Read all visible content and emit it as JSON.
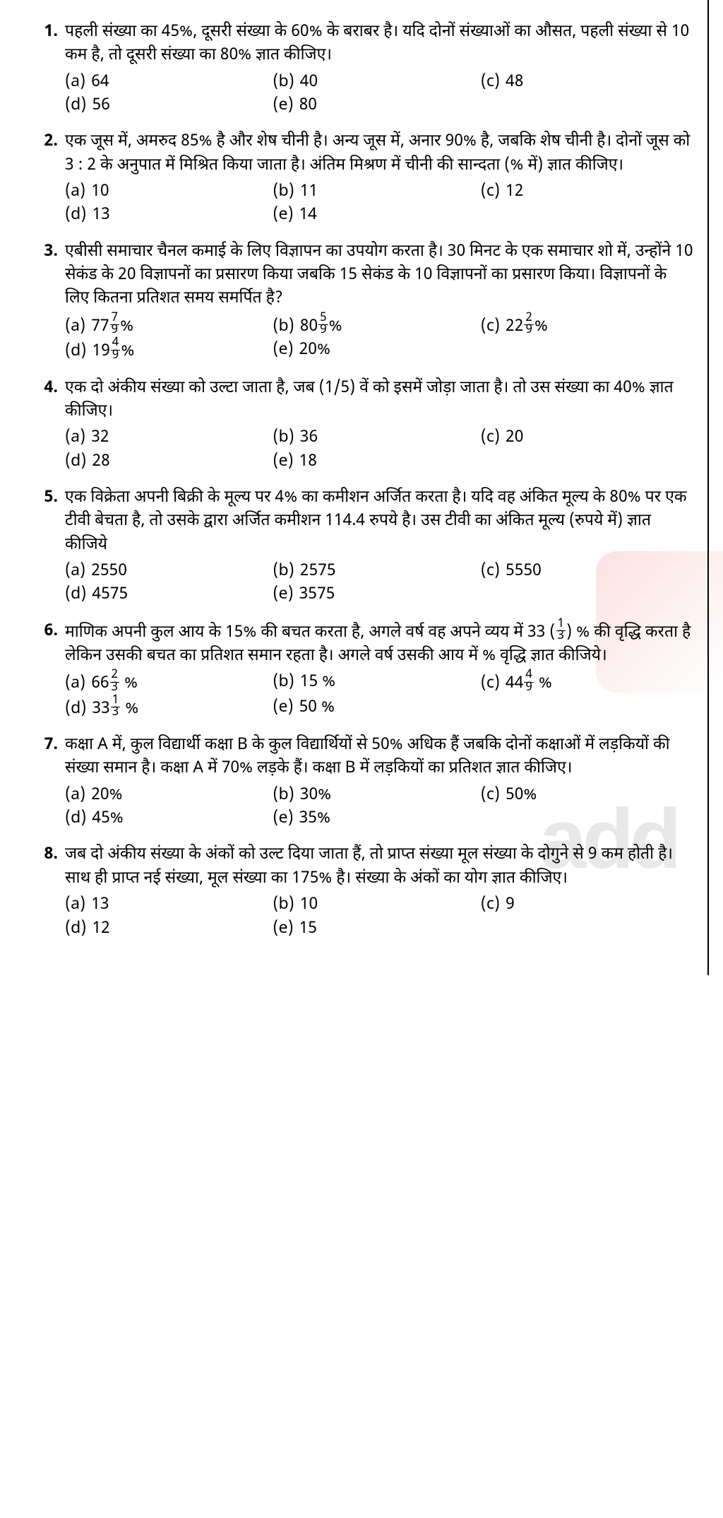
{
  "watermark_text": "add",
  "questions": [
    {
      "num": "1.",
      "text": "पहली संख्या का 45%, दूसरी संख्या के 60% के बराबर है। यदि दोनों संख्याओं का औसत, पहली संख्या से 10 कम है, तो दूसरी संख्या का 80% ज्ञात कीजिए।",
      "options": [
        {
          "l": "(a)",
          "v": "64"
        },
        {
          "l": "(b)",
          "v": "40"
        },
        {
          "l": "(c)",
          "v": "48"
        },
        {
          "l": "(d)",
          "v": "56"
        },
        {
          "l": "(e)",
          "v": "80"
        }
      ]
    },
    {
      "num": "2.",
      "text": "एक जूस में, अमरुद 85% है और शेष चीनी है। अन्य जूस में, अनार 90% है, जबकि शेष चीनी है। दोनों जूस को 3 : 2 के अनुपात में मिश्रित किया जाता है। अंतिम मिश्रण में चीनी की सान्दता (% में) ज्ञात कीजिए।",
      "options": [
        {
          "l": "(a)",
          "v": "10"
        },
        {
          "l": "(b)",
          "v": "11"
        },
        {
          "l": "(c)",
          "v": "12"
        },
        {
          "l": "(d)",
          "v": "13"
        },
        {
          "l": "(e)",
          "v": "14"
        }
      ]
    },
    {
      "num": "3.",
      "text": "एबीसी समाचार चैनल कमाई के लिए विज्ञापन का उपयोग करता है। 30 मिनट के एक समाचार शो में, उन्होंने 10 सेकंड के 20 विज्ञापनों का प्रसारण किया जबकि 15 सेकंड के 10 विज्ञापनों का प्रसारण किया। विज्ञापनों के लिए कितना प्रतिशत समय समर्पित है?",
      "options": [
        {
          "l": "(a)",
          "v": "77",
          "frac": {
            "n": "7",
            "d": "9"
          },
          "suffix": "%"
        },
        {
          "l": "(b)",
          "v": "80",
          "frac": {
            "n": "5",
            "d": "9"
          },
          "suffix": "%"
        },
        {
          "l": "(c)",
          "v": "22",
          "frac": {
            "n": "2",
            "d": "9"
          },
          "suffix": "%"
        },
        {
          "l": "(d)",
          "v": "19",
          "frac": {
            "n": "4",
            "d": "9"
          },
          "suffix": "%"
        },
        {
          "l": "(e)",
          "v": "20%"
        }
      ]
    },
    {
      "num": "4.",
      "text": "एक दो अंकीय संख्या को उल्टा जाता है, जब (1/5) वें को इसमें जोड़ा जाता है। तो उस संख्या का 40% ज्ञात कीजिए।",
      "options": [
        {
          "l": "(a)",
          "v": "32"
        },
        {
          "l": "(b)",
          "v": "36"
        },
        {
          "l": "(c)",
          "v": "20"
        },
        {
          "l": "(d)",
          "v": "28"
        },
        {
          "l": "(e)",
          "v": "18"
        }
      ]
    },
    {
      "num": "5.",
      "text": "एक विक्रेता अपनी बिक्री के मूल्य पर 4% का कमीशन अर्जित करता है। यदि वह अंकित मूल्य के 80% पर एक टीवी बेचता है, तो उसके द्वारा अर्जित कमीशन 114.4 रुपये है। उस टीवी का अंकित मूल्य (रुपये में) ज्ञात कीजिये",
      "options": [
        {
          "l": "(a)",
          "v": "2550"
        },
        {
          "l": "(b)",
          "v": "2575"
        },
        {
          "l": "(c)",
          "v": "5550"
        },
        {
          "l": "(d)",
          "v": "4575"
        },
        {
          "l": "(e)",
          "v": "3575"
        }
      ]
    },
    {
      "num": "6.",
      "text_parts": [
        "माणिक अपनी कुल आय के 15% की बचत करता है, अगले वर्ष वह अपने व्यय में 33 ",
        " % की वृद्धि करता है लेकिन उसकी बचत का प्रतिशत समान रहता है। अगले वर्ष उसकी आय में % वृद्धि ज्ञात कीजिये।"
      ],
      "inline_frac": {
        "n": "1",
        "d": "3",
        "paren": true
      },
      "options": [
        {
          "l": "(a)",
          "v": "66",
          "frac": {
            "n": "2",
            "d": "3"
          },
          "suffix": " %"
        },
        {
          "l": "(b)",
          "v": "15 %"
        },
        {
          "l": "(c)",
          "v": "44",
          "frac": {
            "n": "4",
            "d": "9"
          },
          "suffix": " %"
        },
        {
          "l": "(d)",
          "v": "33",
          "frac": {
            "n": "1",
            "d": "3"
          },
          "suffix": " %"
        },
        {
          "l": "(e)",
          "v": "50 %"
        }
      ]
    },
    {
      "num": "7.",
      "text": "कक्षा A में, कुल विद्यार्थी कक्षा B के कुल विद्यार्थियों से 50% अधिक हैं जबकि दोनों कक्षाओं में लड़कियों की संख्या समान है। कक्षा A में 70% लड़के हैं। कक्षा B में लड़कियों का प्रतिशत ज्ञात कीजिए।",
      "options": [
        {
          "l": "(a)",
          "v": "20%"
        },
        {
          "l": "(b)",
          "v": "30%"
        },
        {
          "l": "(c)",
          "v": "50%"
        },
        {
          "l": "(d)",
          "v": "45%"
        },
        {
          "l": "(e)",
          "v": "35%"
        }
      ]
    },
    {
      "num": "8.",
      "text": "जब दो अंकीय संख्या के अंकों को उल्ट दिया जाता हैं, तो प्राप्त संख्या मूल संख्या के दोगुने से 9 कम होती है। साथ ही प्राप्त नई संख्या, मूल संख्या का 175% है। संख्या के अंकों का योग ज्ञात कीजिए।",
      "options": [
        {
          "l": "(a)",
          "v": "13"
        },
        {
          "l": "(b)",
          "v": "10"
        },
        {
          "l": "(c)",
          "v": "9"
        },
        {
          "l": "(d)",
          "v": "12"
        },
        {
          "l": "(e)",
          "v": "15"
        }
      ]
    }
  ]
}
